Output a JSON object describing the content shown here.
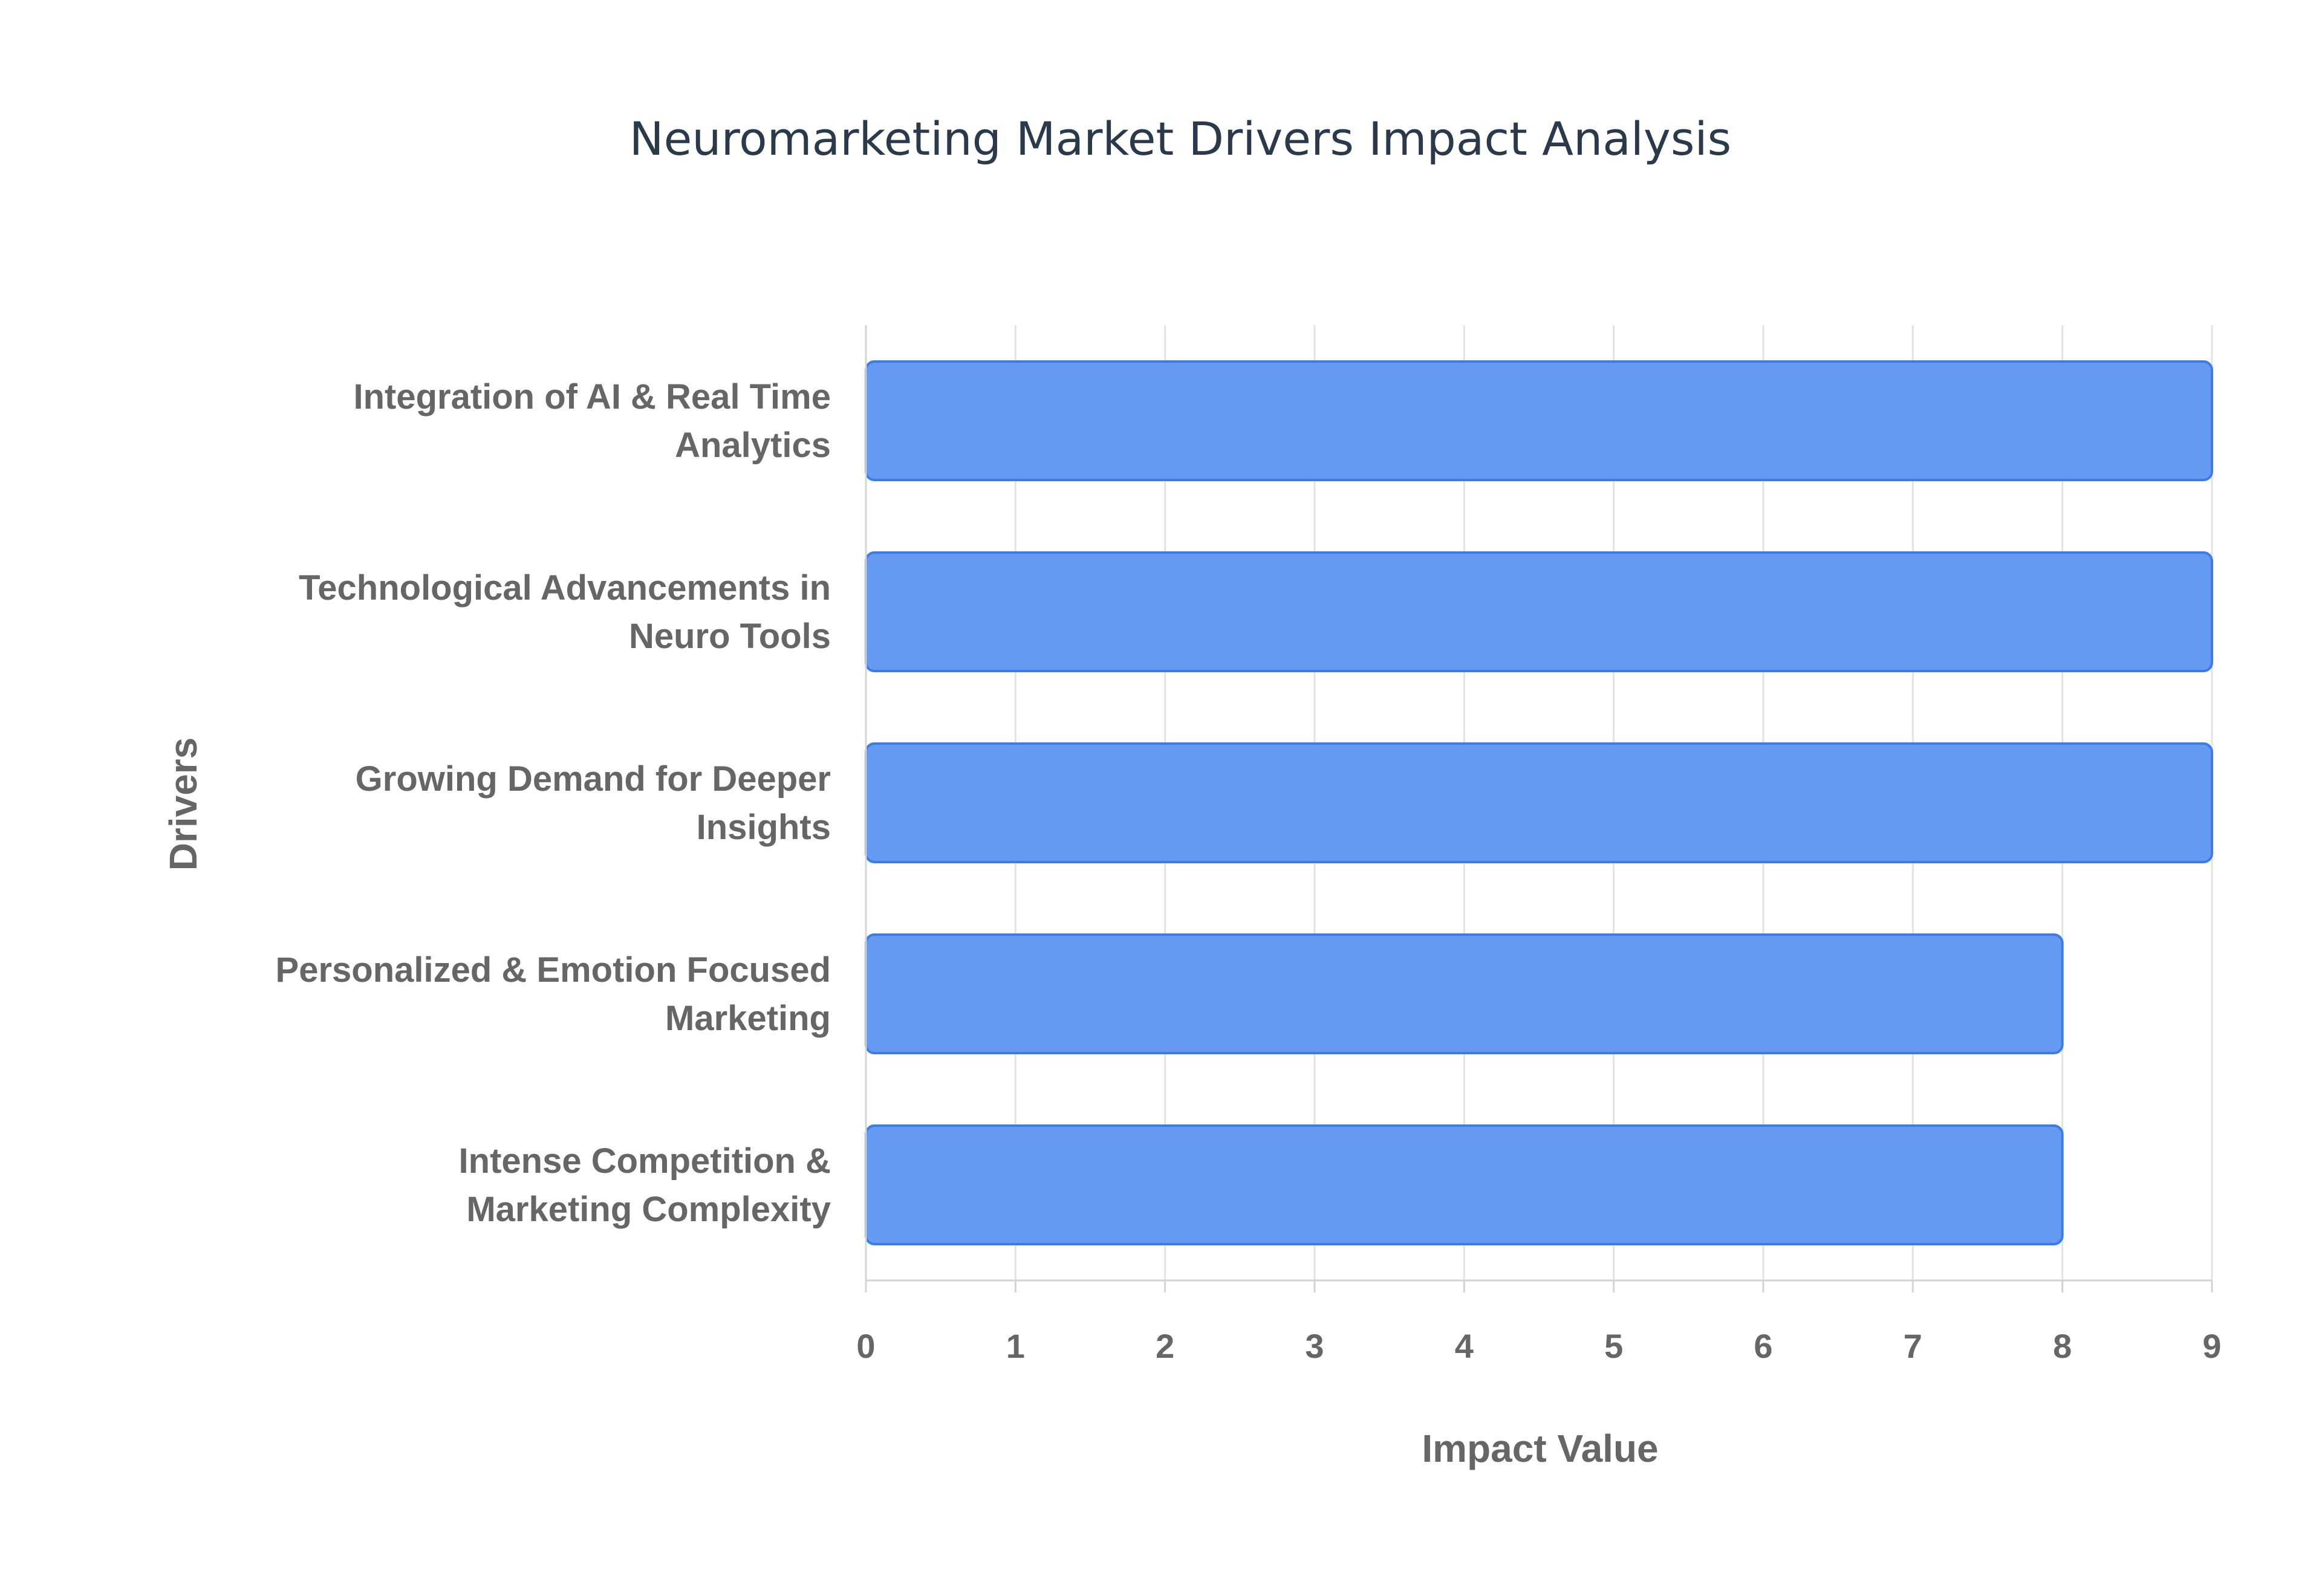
{
  "chart_data": {
    "type": "bar",
    "orientation": "horizontal",
    "title": "Neuromarketing Market Drivers Impact Analysis",
    "xlabel": "Impact Value",
    "ylabel": "Drivers",
    "categories": [
      "Integration of AI & Real Time Analytics",
      "Technological Advancements in Neuro Tools",
      "Growing Demand for Deeper Insights",
      "Personalized & Emotion Focused Marketing",
      "Intense Competition & Marketing Complexity"
    ],
    "category_lines": [
      [
        "Integration of AI & Real Time",
        "Analytics"
      ],
      [
        "Technological Advancements in",
        "Neuro Tools"
      ],
      [
        "Growing Demand for Deeper",
        "Insights"
      ],
      [
        "Personalized & Emotion Focused",
        "Marketing"
      ],
      [
        "Intense Competition &",
        "Marketing Complexity"
      ]
    ],
    "values": [
      9,
      9,
      9,
      8,
      8
    ],
    "xlim": [
      0,
      9
    ],
    "xticks": [
      "0",
      "1",
      "2",
      "3",
      "4",
      "5",
      "6",
      "7",
      "8",
      "9"
    ],
    "grid": true,
    "legend": false,
    "colors": {
      "bar_fill": "#6699f2",
      "bar_stroke": "#3c7be8"
    }
  }
}
